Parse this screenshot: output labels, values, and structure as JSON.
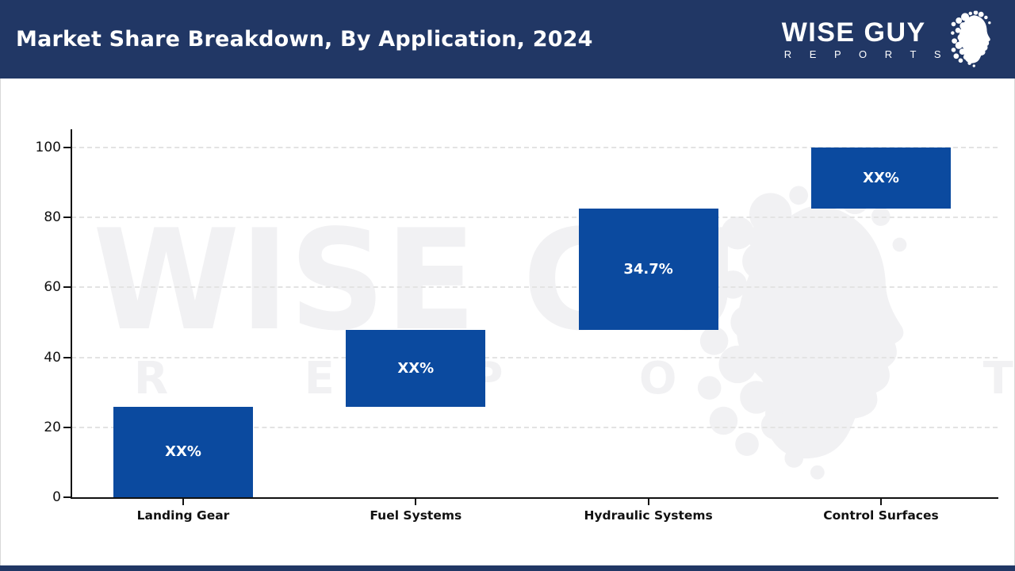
{
  "header": {
    "title": "Market Share Breakdown, By Application, 2024",
    "logo_line1": "WISE GUY",
    "logo_line2": "R E P O R T S",
    "bg_color": "#213765"
  },
  "watermark": {
    "line1": "WISE GUY",
    "line2": "R E P O R T S"
  },
  "chart_data": {
    "type": "bar",
    "subtype": "waterfall",
    "title": "Market Share Breakdown, By Application, 2024",
    "categories": [
      "Landing Gear",
      "Fuel Systems",
      "Hydraulic Systems",
      "Control Surfaces"
    ],
    "segments": [
      {
        "category": "Landing Gear",
        "start": 0,
        "end": 25.9,
        "label": "XX%"
      },
      {
        "category": "Fuel Systems",
        "start": 25.9,
        "end": 47.8,
        "label": "XX%"
      },
      {
        "category": "Hydraulic Systems",
        "start": 47.8,
        "end": 82.5,
        "label": "34.7%"
      },
      {
        "category": "Control Surfaces",
        "start": 82.5,
        "end": 100,
        "label": "XX%"
      }
    ],
    "y_ticks": [
      0,
      20,
      40,
      60,
      80,
      100
    ],
    "ylim": [
      0,
      105
    ],
    "xlabel": "",
    "ylabel": "",
    "grid": "horizontal-dashed",
    "legend": "none",
    "bar_color": "#0b4a9f",
    "bar_label_color": "#ffffff",
    "axis_color": "#111111",
    "gridline_color": "#e3e3e3"
  }
}
